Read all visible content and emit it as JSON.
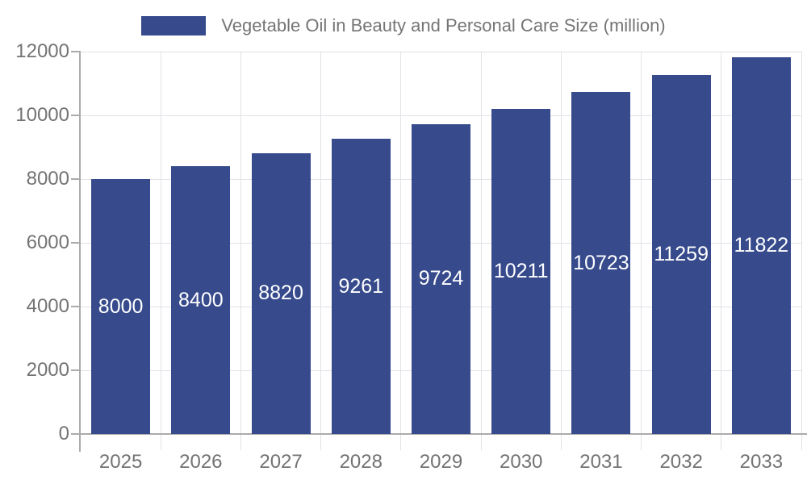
{
  "chart_data": {
    "type": "bar",
    "title": "Vegetable Oil in Beauty and Personal Care Size (million)",
    "legend_entries": [
      "Vegetable Oil in Beauty and Personal Care Size (million)"
    ],
    "legend_position": "top-center",
    "categories": [
      "2025",
      "2026",
      "2027",
      "2028",
      "2029",
      "2030",
      "2031",
      "2032",
      "2033"
    ],
    "values": [
      8000,
      8400,
      8820,
      9261,
      9724,
      10211,
      10723,
      11259,
      11822
    ],
    "bar_value_labels": [
      "8000",
      "8400",
      "8820",
      "9261",
      "9724",
      "10211",
      "10723",
      "11259",
      "11822"
    ],
    "xlabel": "",
    "ylabel": "",
    "ylim": [
      0,
      12000
    ],
    "yticks": [
      0,
      2000,
      4000,
      6000,
      8000,
      10000,
      12000
    ],
    "grid": true
  },
  "colors": {
    "bar": "#364a8c",
    "bar_label": "#ffffff",
    "grid": "#e2e2e8",
    "axis": "#ababab",
    "tick_text": "#737373",
    "legend_text": "#757575",
    "background": "#ffffff"
  }
}
